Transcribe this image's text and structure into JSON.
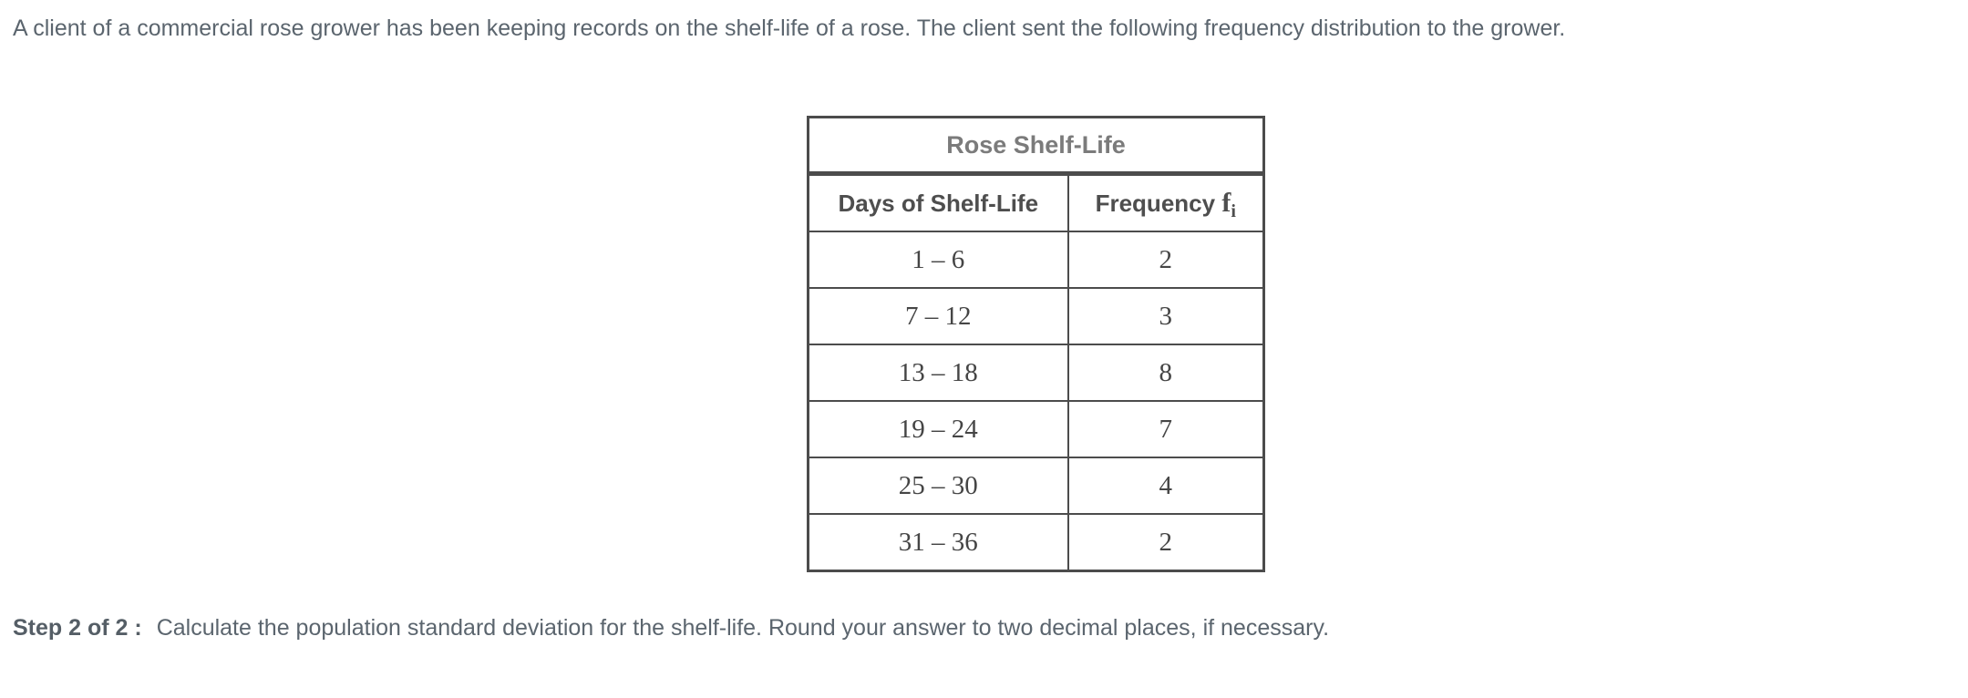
{
  "page": {
    "background_color": "#ffffff",
    "text_color": "#5b656e"
  },
  "intro": "A client of a commercial rose grower has been keeping records on the shelf-life of a rose. The client sent the following frequency distribution to the grower.",
  "table": {
    "title": "Rose Shelf-Life",
    "border_color": "#4c4c4c",
    "title_color": "#7b7b7b",
    "header_color": "#4e4e4e",
    "data_color": "#454545",
    "columns": {
      "days_label": "Days of Shelf-Life",
      "frequency_label": "Frequency",
      "frequency_symbol": "f",
      "frequency_subscript": "i"
    },
    "rows": [
      {
        "range": "1 – 6",
        "frequency": "2"
      },
      {
        "range": "7 – 12",
        "frequency": "3"
      },
      {
        "range": "13 – 18",
        "frequency": "8"
      },
      {
        "range": "19 – 24",
        "frequency": "7"
      },
      {
        "range": "25 – 30",
        "frequency": "4"
      },
      {
        "range": "31 – 36",
        "frequency": "2"
      }
    ]
  },
  "step": {
    "label": "Step 2 of 2 :",
    "instruction": "Calculate the population standard deviation for the shelf-life. Round your answer to two decimal places, if necessary."
  }
}
